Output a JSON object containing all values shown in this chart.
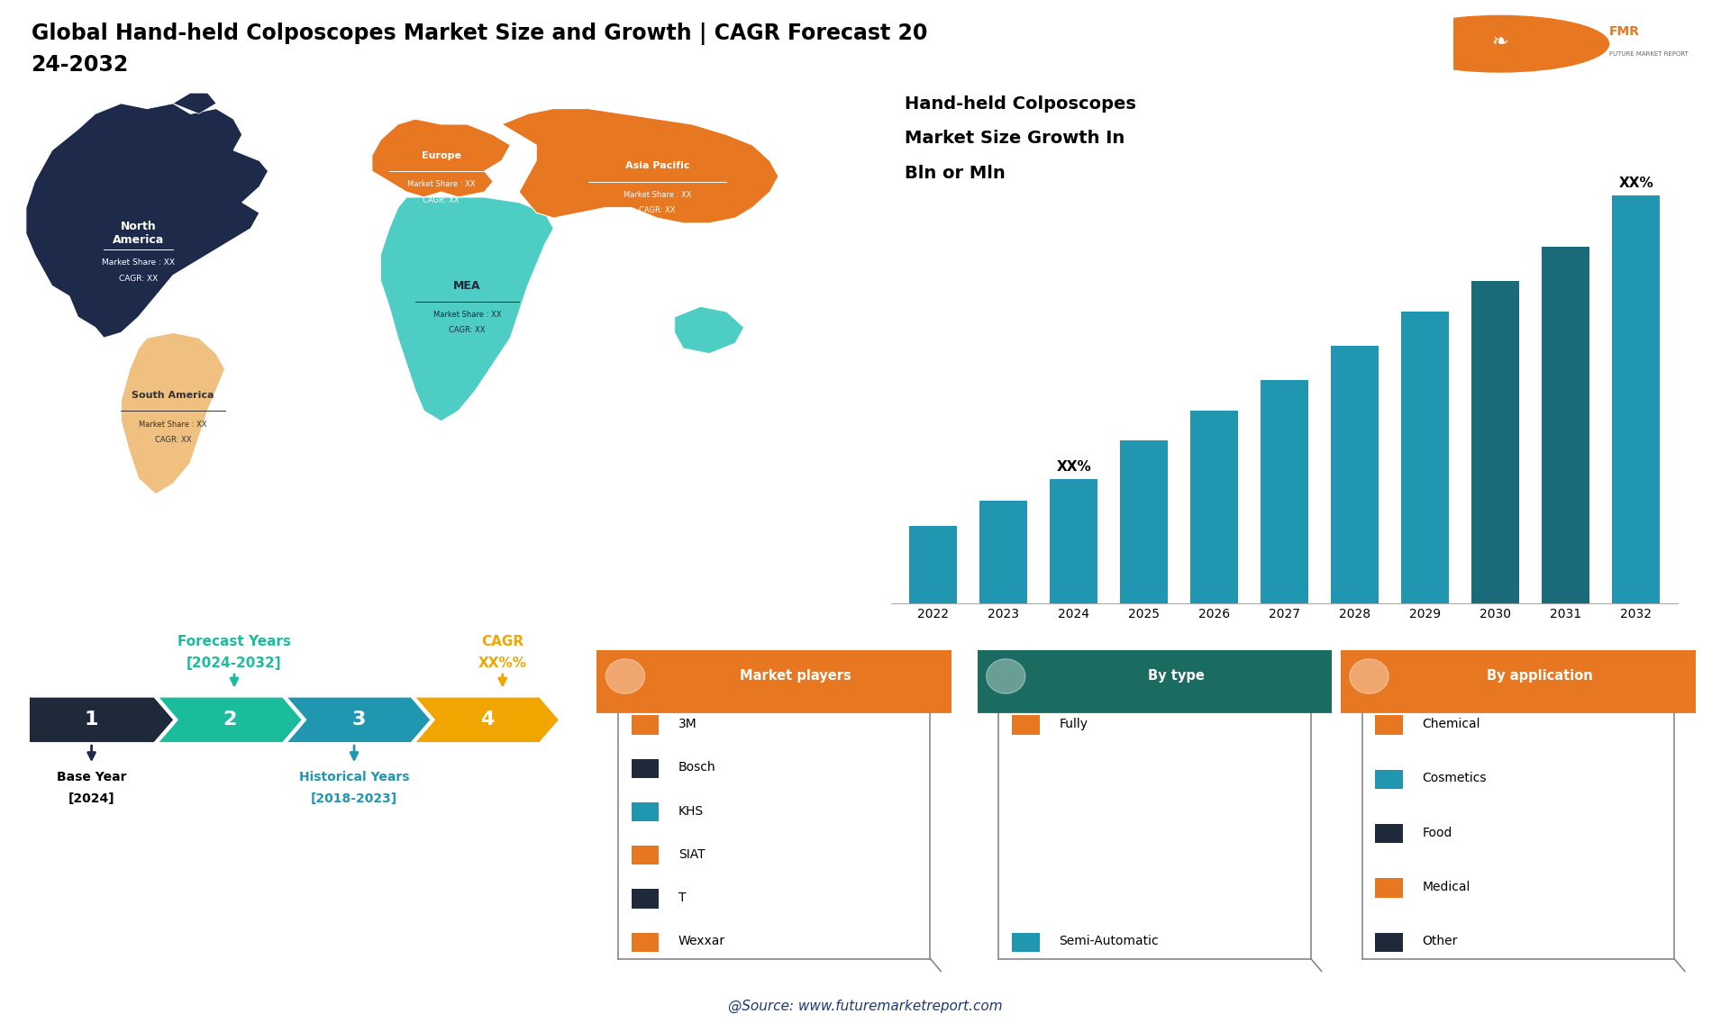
{
  "title_line1": "Global Hand-held Colposcopes Market Size and Growth | CAGR Forecast 20",
  "title_line2": "24-2032",
  "chart_title_line1": "Hand-held Colposcopes",
  "chart_title_line2": "Market Size Growth In",
  "chart_title_line3": "Bln or Mln",
  "bar_years": [
    "2022",
    "2023",
    "2024",
    "2025",
    "2026",
    "2027",
    "2028",
    "2029",
    "2030",
    "2031",
    "2032"
  ],
  "bar_values": [
    1.8,
    2.4,
    2.9,
    3.8,
    4.5,
    5.2,
    6.0,
    6.8,
    7.5,
    8.3,
    9.5
  ],
  "bar_color_normal": "#2196b0",
  "bar_color_dark": "#1a6b7a",
  "bar_label_idx_mid": 2,
  "bar_label_idx_last": 10,
  "bar_label_text": "XX%",
  "source_text": "@Source: www.futuremarketreport.com",
  "timeline_labels": [
    "1",
    "2",
    "3",
    "4"
  ],
  "timeline_colors": [
    "#1e2a3a",
    "#1abc9c",
    "#2196b0",
    "#f0a500"
  ],
  "forecast_color": "#1abc9c",
  "cagr_color": "#f0a500",
  "historical_color": "#2196b0",
  "market_players": [
    "3M",
    "Bosch",
    "KHS",
    "SIAT",
    "T",
    "Wexxar"
  ],
  "by_type": [
    "Fully",
    "Semi-Automatic"
  ],
  "by_application": [
    "Chemical",
    "Cosmetics",
    "Food",
    "Medical",
    "Other"
  ],
  "col1_header": "Market players",
  "col2_header": "By type",
  "col3_header": "By application",
  "col1_color": "#e87722",
  "col2_color": "#1a6b60",
  "col3_color": "#e87722",
  "bullet_colors_col1": [
    "#e87722",
    "#1e2a3a",
    "#2196b0",
    "#e87722",
    "#1e2a3a",
    "#e87722"
  ],
  "bullet_colors_col2": [
    "#e87722",
    "#2196b0"
  ],
  "bullet_colors_col3": [
    "#e87722",
    "#2196b0",
    "#1e2a3a",
    "#e87722",
    "#1e2a3a"
  ],
  "na_color": "#1e2a4a",
  "eu_color": "#e87722",
  "ap_color": "#e87722",
  "mea_color": "#4ecdc4",
  "sa_color": "#f0c080",
  "logo_circle_color": "#e87722",
  "logo_text_color": "#e87722",
  "divider_color": "#dddddd"
}
